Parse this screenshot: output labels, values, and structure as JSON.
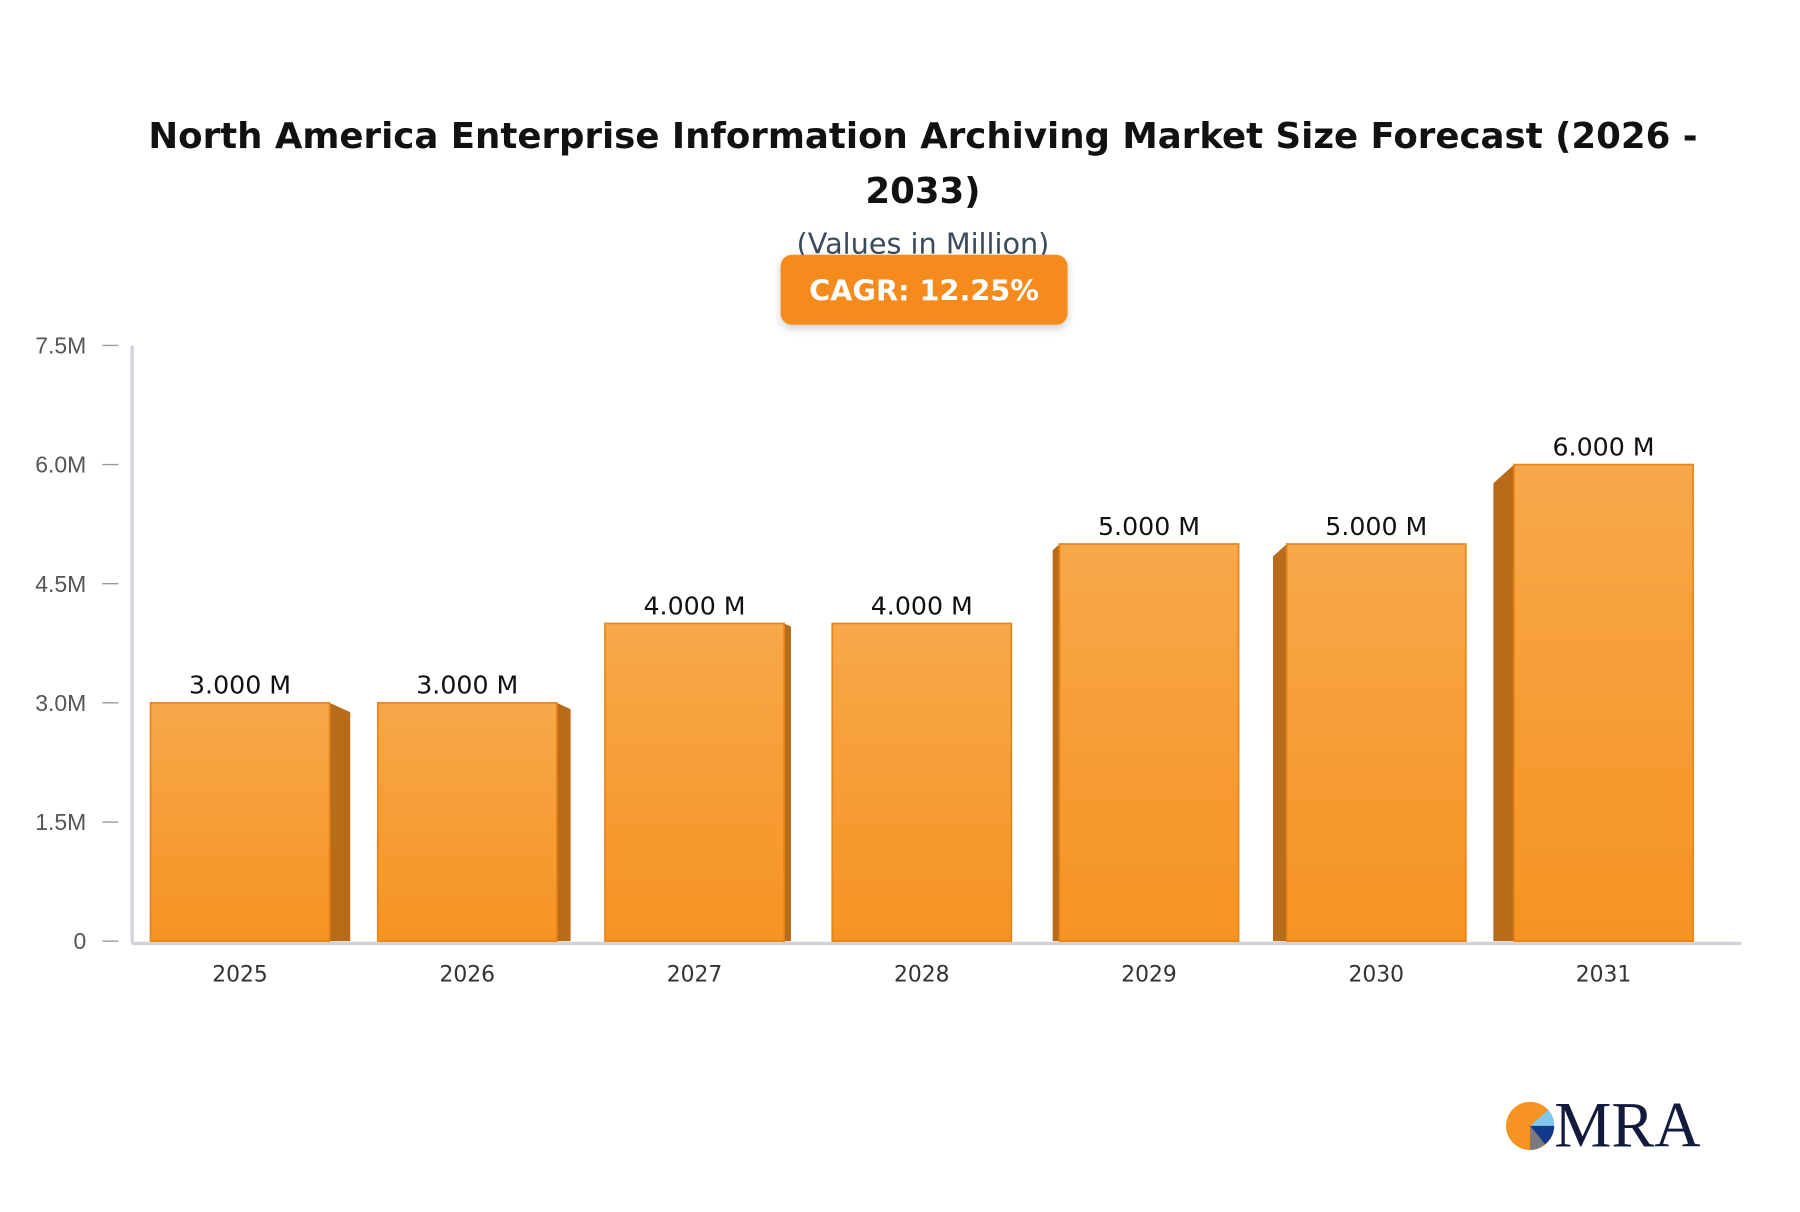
{
  "chart_data": {
    "type": "bar",
    "title": "North America Enterprise Information Archiving Market Size Forecast (2026 - 2033)",
    "title_lines": [
      "North America Enterprise Information Archiving Market Size Forecast (2026 -",
      "2033)"
    ],
    "subtitle": "(Values in Million)",
    "badge": "CAGR: 12.25%",
    "categories": [
      "2025",
      "2026",
      "2027",
      "2028",
      "2029",
      "2030",
      "2031"
    ],
    "values": [
      3.0,
      3.0,
      4.0,
      4.0,
      5.0,
      5.0,
      6.0
    ],
    "data_labels": [
      "3.000 M",
      "3.000 M",
      "4.000 M",
      "4.000 M",
      "5.000 M",
      "5.000 M",
      "6.000 M"
    ],
    "yticks": [
      0,
      1.5,
      3.0,
      4.5,
      6.0,
      7.5
    ],
    "ytick_labels": [
      "0",
      "1.5M",
      "3.0M",
      "4.5M",
      "6.0M",
      "7.5M"
    ],
    "ylim": [
      0,
      7.5
    ],
    "xlabel": "",
    "ylabel": "",
    "grid": false,
    "legend": "none",
    "colors": {
      "bar_top": "#f7a84a",
      "bar_bottom": "#f69322",
      "bar_side": "#b86b18",
      "badge": "#f58b1f",
      "axis": "#d0d3da"
    }
  },
  "logo": {
    "text": "MRA"
  }
}
